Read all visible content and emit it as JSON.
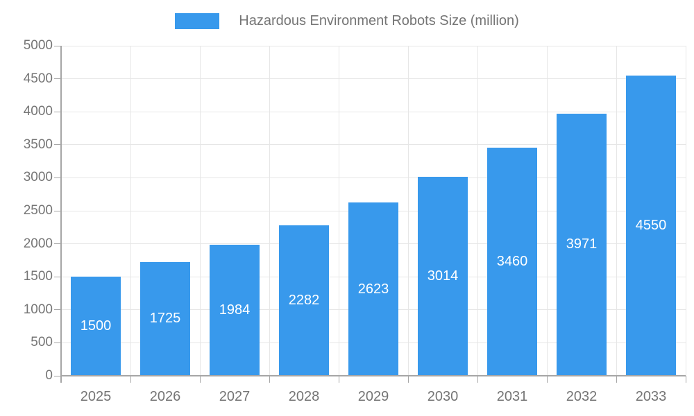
{
  "chart_data": {
    "type": "bar",
    "title": "Hazardous Environment Robots Size (million)",
    "xlabel": "",
    "ylabel": "",
    "categories": [
      "2025",
      "2026",
      "2027",
      "2028",
      "2029",
      "2030",
      "2031",
      "2032",
      "2033"
    ],
    "values": [
      1500,
      1725,
      1984,
      2282,
      2623,
      3014,
      3460,
      3971,
      4550
    ],
    "ylim": [
      0,
      5000
    ],
    "ytick_step": 500,
    "ytick_labels": [
      "0",
      "500",
      "1000",
      "1500",
      "2000",
      "2500",
      "3000",
      "3500",
      "4000",
      "4500",
      "5000"
    ],
    "grid": true,
    "legend_position": "top",
    "value_labels_inside_bars": true,
    "colors": {
      "bar": "#3899EC",
      "grid": "#E6E6E6",
      "axis": "#A6A6A6",
      "label": "#757575",
      "value_label": "#FFFFFF"
    }
  }
}
